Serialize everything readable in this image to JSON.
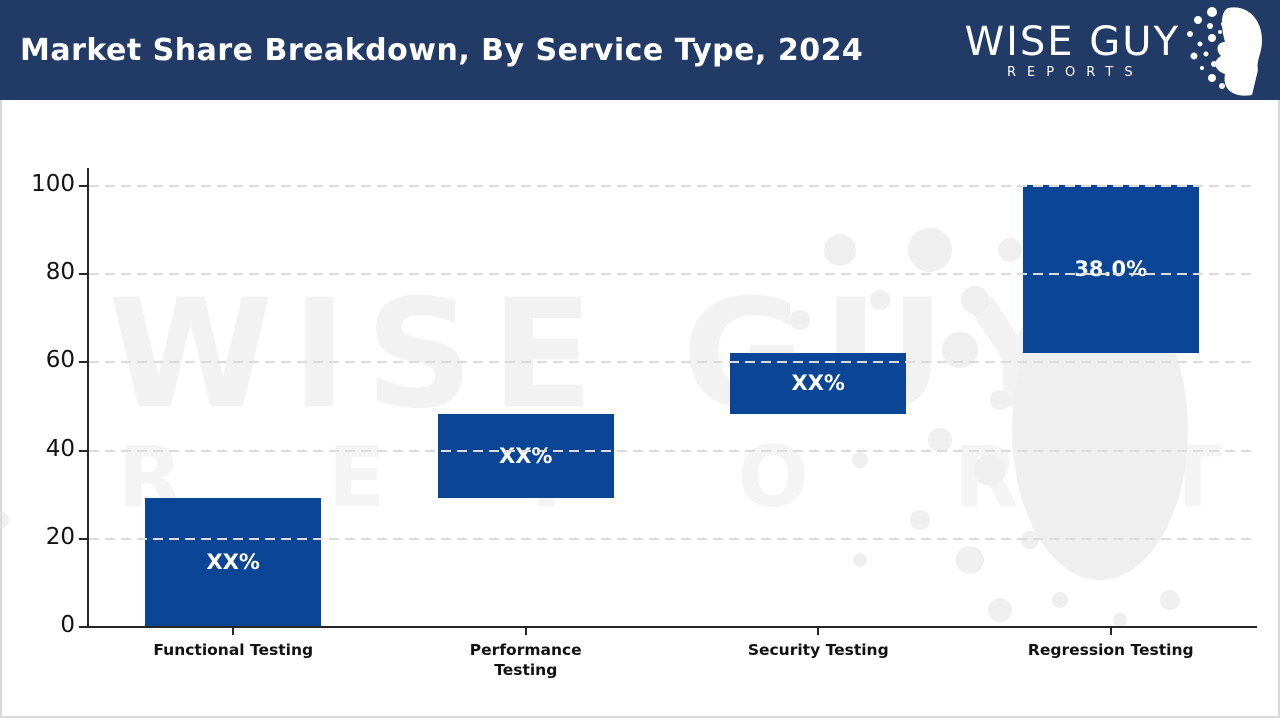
{
  "header": {
    "title": "Market Share Breakdown, By Service Type, 2024",
    "bg_color": "#223a66",
    "logo": {
      "line1": "WISE GUY",
      "line2": "REPORTS"
    }
  },
  "watermark": {
    "line1": "WISE GUY",
    "line2": "R E P O R T S"
  },
  "chart_data": {
    "type": "bar",
    "subtype": "waterfall",
    "title": "Market Share Breakdown, By Service Type, 2024",
    "xlabel": "",
    "ylabel": "",
    "ylim": [
      0,
      104
    ],
    "yticks": [
      0,
      20,
      40,
      60,
      80,
      100
    ],
    "grid": "dashed-horizontal",
    "bar_color": "#0b4595",
    "label_color": "#ffffff",
    "categories": [
      "Functional Testing",
      "Performance Testing",
      "Security Testing",
      "Regression Testing"
    ],
    "segments": [
      {
        "category": "Functional Testing",
        "lines": [
          "Functional Testing"
        ],
        "start": 0,
        "end": 29,
        "label": "XX%"
      },
      {
        "category": "Performance Testing",
        "lines": [
          "Performance",
          "Testing"
        ],
        "start": 29,
        "end": 48,
        "label": "XX%"
      },
      {
        "category": "Security Testing",
        "lines": [
          "Security Testing"
        ],
        "start": 48,
        "end": 62,
        "label": "XX%"
      },
      {
        "category": "Regression Testing",
        "lines": [
          "Regression Testing"
        ],
        "start": 62,
        "end": 100,
        "label": "38.0%"
      }
    ]
  }
}
